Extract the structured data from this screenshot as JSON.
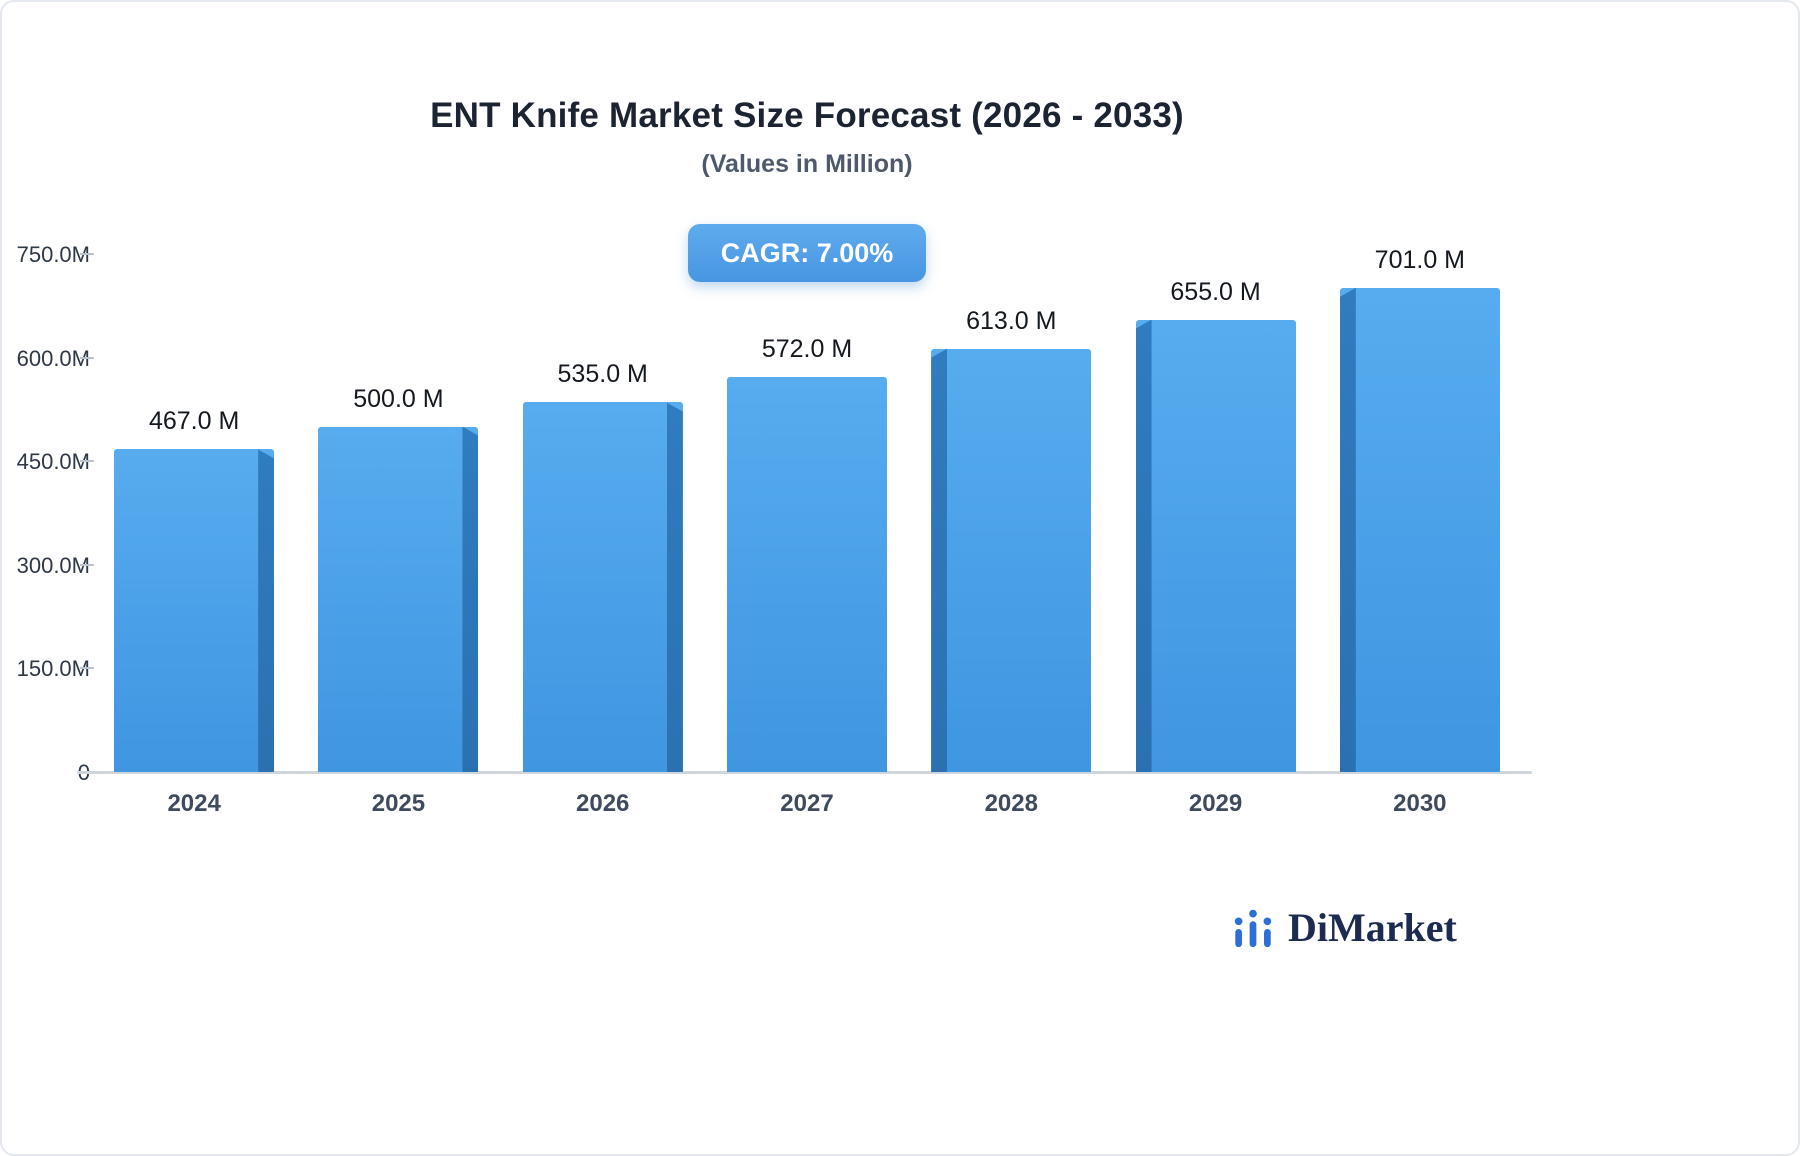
{
  "title": "ENT Knife Market Size Forecast (2026 - 2033)",
  "subtitle": "(Values in Million)",
  "badge": {
    "label": "CAGR: 7.00%"
  },
  "brand": {
    "name": "DiMarket"
  },
  "colors": {
    "bar_face_top": "#57acef",
    "bar_face_bottom": "#3f96e1",
    "bar_side": "#2d77b9",
    "badge_bg": "#4f9fe8",
    "axis_text": "#2e3847",
    "logo_blue": "#2e6ed8",
    "logo_navy": "#1d2b50"
  },
  "chart_data": {
    "type": "bar",
    "title": "ENT Knife Market Size Forecast (2026 - 2033)",
    "subtitle": "(Values in Million)",
    "categories": [
      "2024",
      "2025",
      "2026",
      "2027",
      "2028",
      "2029",
      "2030"
    ],
    "values": [
      467,
      500,
      535,
      572,
      613,
      655,
      701
    ],
    "value_labels": [
      "467.0 M",
      "500.0 M",
      "535.0 M",
      "572.0 M",
      "613.0 M",
      "655.0 M",
      "701.0 M"
    ],
    "annotation": "CAGR: 7.00%",
    "xlabel": "",
    "ylabel": "",
    "ylim": [
      0,
      750
    ],
    "yticks": [
      {
        "label": "750.0M",
        "value": 750
      },
      {
        "label": "600.0M",
        "value": 600
      },
      {
        "label": "450.0M",
        "value": 450
      },
      {
        "label": "300.0M",
        "value": 300
      },
      {
        "label": "150.0M",
        "value": 150
      },
      {
        "label": "0",
        "value": 0
      }
    ],
    "grid": false,
    "legend": false
  }
}
